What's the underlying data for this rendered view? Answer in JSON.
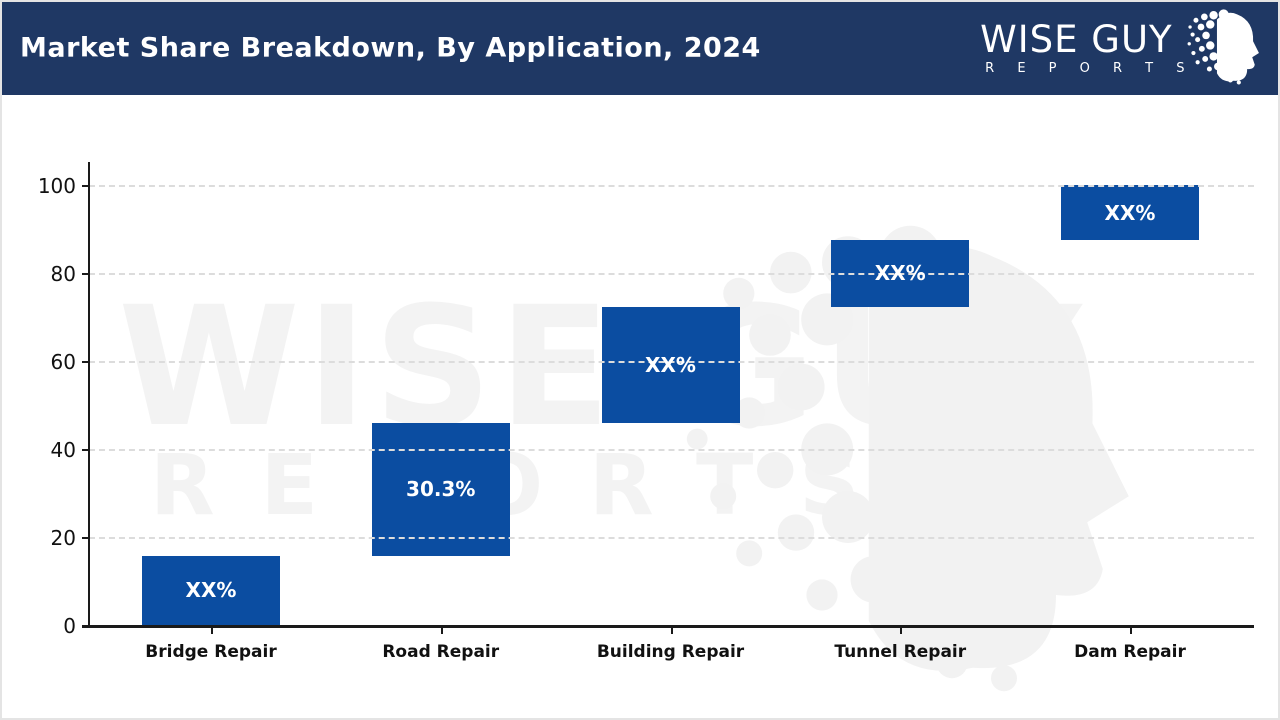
{
  "header": {
    "title": "Market Share Breakdown, By Application, 2024",
    "bg_color": "#1F3864",
    "logo": {
      "line1": "WISE GUY",
      "line2": "R E P O R T S"
    }
  },
  "watermark": {
    "line1": "WISE GUY",
    "line2": "REPORTS"
  },
  "chart_data": {
    "type": "bar",
    "subtype": "floating-segment-waterfall",
    "title": "Market Share Breakdown, By Application, 2024",
    "categories": [
      "Bridge Repair",
      "Road Repair",
      "Building Repair",
      "Tunnel Repair",
      "Dam Repair"
    ],
    "segments": [
      {
        "category": "Bridge Repair",
        "start": 0,
        "end": 15.7,
        "label": "XX%"
      },
      {
        "category": "Road Repair",
        "start": 15.7,
        "end": 46.0,
        "label": "30.3%"
      },
      {
        "category": "Building Repair",
        "start": 46.0,
        "end": 72.3,
        "label": "XX%"
      },
      {
        "category": "Tunnel Repair",
        "start": 72.3,
        "end": 87.5,
        "label": "XX%"
      },
      {
        "category": "Dam Repair",
        "start": 87.5,
        "end": 100,
        "label": "XX%"
      }
    ],
    "xlabel": "",
    "ylabel": "",
    "y_ticks": [
      0,
      20,
      40,
      60,
      80,
      100
    ],
    "ylim": [
      0,
      105
    ],
    "grid": "horizontal-dashed",
    "grid_over_bars": true,
    "legend": "none",
    "bar_color": "#0B4DA1",
    "bar_label_color": "#FFFFFF",
    "axis_color": "#1A1A1A",
    "gridline_color": "#DCDCDC"
  }
}
